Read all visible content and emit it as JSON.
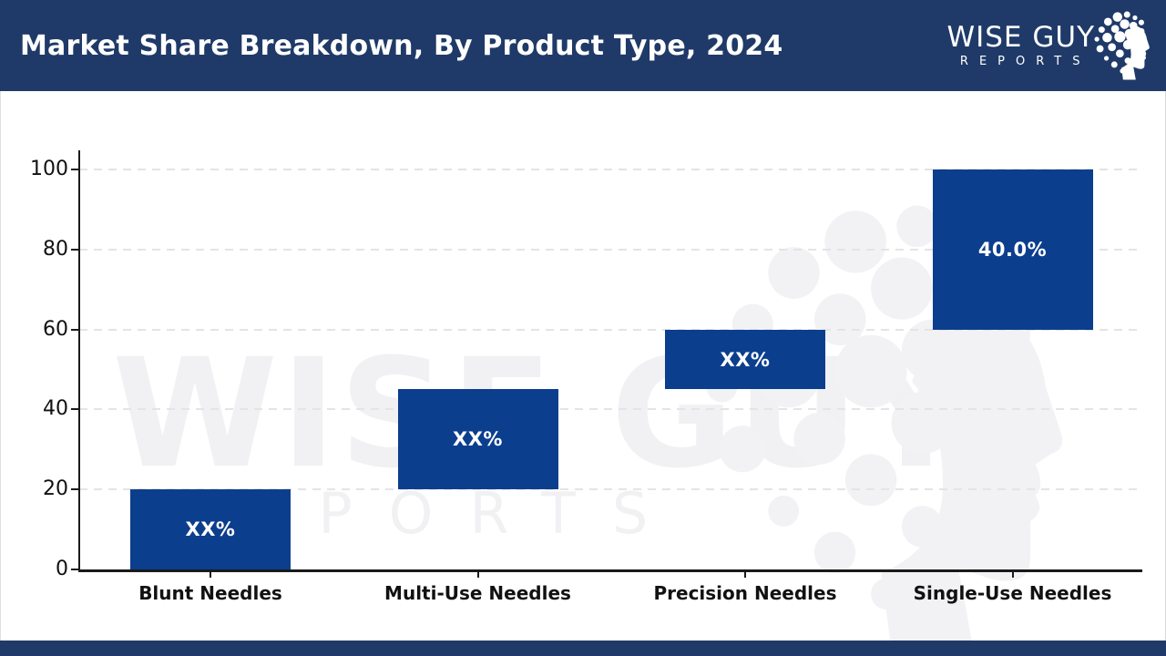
{
  "header": {
    "title": "Market Share Breakdown, By Product Type, 2024"
  },
  "brand": {
    "name": "WISE GUY",
    "tagline": "REPORTS"
  },
  "watermark": {
    "line1": "WISE GUY",
    "line2": "REPORTS"
  },
  "theme": {
    "header_bg": "#1f3a68",
    "footer_bg": "#1f3a68",
    "bar_color": "#0c3e8e",
    "grid_color": "#e4e4e6",
    "watermark_color": "#f1f1f4"
  },
  "chart_data": {
    "type": "bar",
    "subtype": "waterfall",
    "title": "Market Share Breakdown, By Product Type, 2024",
    "categories": [
      "Blunt Needles",
      "Multi-Use Needles",
      "Precision Needles",
      "Single-Use Needles"
    ],
    "segments": [
      {
        "category": "Blunt Needles",
        "start": 0,
        "end": 20,
        "label": "XX%"
      },
      {
        "category": "Multi-Use Needles",
        "start": 20,
        "end": 45,
        "label": "XX%"
      },
      {
        "category": "Precision Needles",
        "start": 45,
        "end": 60,
        "label": "XX%"
      },
      {
        "category": "Single-Use Needles",
        "start": 60,
        "end": 100,
        "label": "40.0%"
      }
    ],
    "y_ticks": [
      0,
      20,
      40,
      60,
      80,
      100
    ],
    "ylim": [
      0,
      105
    ],
    "xlabel": "",
    "ylabel": "",
    "grid": "horizontal-dashed",
    "legend": "none"
  }
}
